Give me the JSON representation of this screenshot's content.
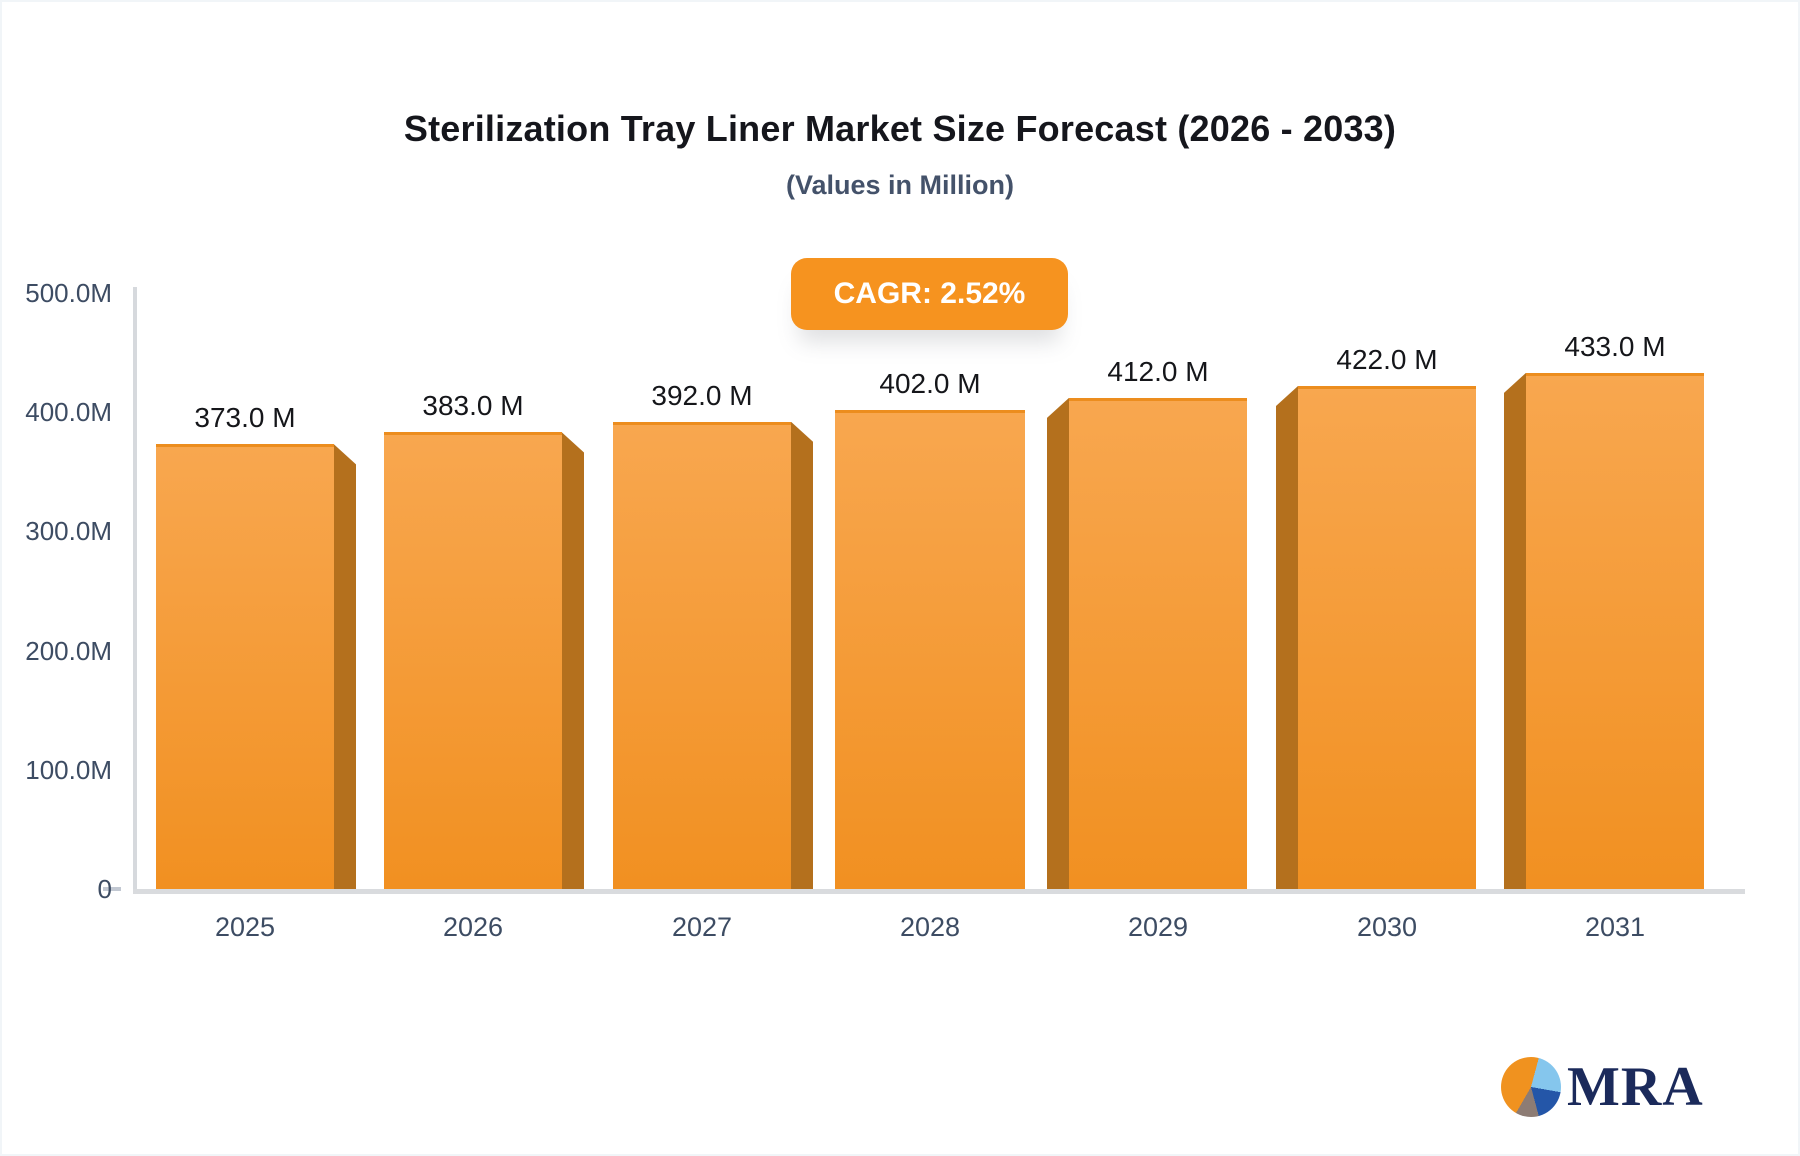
{
  "header": {
    "title": "Sterilization Tray Liner Market Size Forecast (2026 - 2033)",
    "subtitle": "(Values in Million)"
  },
  "badge": {
    "label": "CAGR: 2.52%"
  },
  "chart_data": {
    "type": "bar",
    "title": "Sterilization Tray Liner Market Size Forecast (2026 - 2033)",
    "subtitle": "(Values in Million)",
    "categories": [
      "2025",
      "2026",
      "2027",
      "2028",
      "2029",
      "2030",
      "2031"
    ],
    "values": [
      373,
      383,
      392,
      402,
      412,
      422,
      433
    ],
    "value_labels": [
      "373.0 M",
      "383.0 M",
      "392.0 M",
      "402.0 M",
      "412.0 M",
      "422.0 M",
      "433.0 M"
    ],
    "unit": "Million",
    "ylim": [
      0,
      500
    ],
    "y_ticks": [
      {
        "label": "500.0M",
        "value": 500
      },
      {
        "label": "400.0M",
        "value": 400
      },
      {
        "label": "300.0M",
        "value": 300
      },
      {
        "label": "200.0M",
        "value": 200
      },
      {
        "label": "100.0M",
        "value": 100
      },
      {
        "label": "0",
        "value": 0
      }
    ],
    "grid": false,
    "legend": false,
    "xlabel": "",
    "ylabel": ""
  },
  "colors": {
    "bar_top": "#f8a74f",
    "bar_bottom": "#f19021",
    "bar_side": "#b4701d",
    "badge_bg": "#f6931f",
    "axis_text": "#3d4c63",
    "title_text": "#15161c"
  },
  "logo": {
    "text": "MRA",
    "pie_colors": {
      "orange": "#f0921f",
      "light_blue": "#85c6ed",
      "dark_blue": "#2456a8",
      "brown_gray": "#8d7c74"
    }
  }
}
